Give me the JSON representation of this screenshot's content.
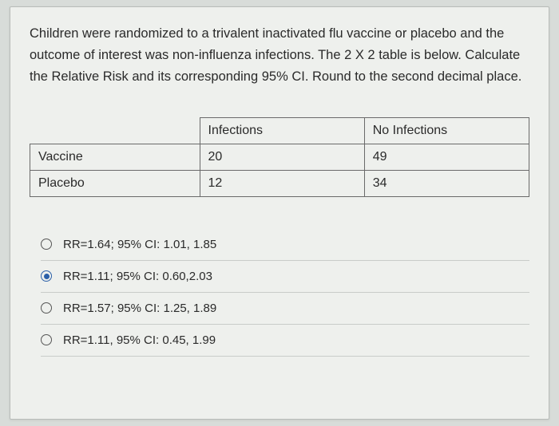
{
  "question": {
    "text": "Children were randomized to a trivalent inactivated flu vaccine or placebo and the outcome of interest was non-influenza infections. The 2 X 2 table is below. Calculate the Relative Risk and its corresponding 95% CI. Round to the second decimal place."
  },
  "table": {
    "columns": [
      "",
      "Infections",
      "No Infections"
    ],
    "rows": [
      [
        "Vaccine",
        "20",
        "49"
      ],
      [
        "Placebo",
        "12",
        "34"
      ]
    ],
    "border_color": "#6a6a6a",
    "cell_background": "#eef0ed",
    "text_color": "#2a2a2a",
    "fontsize": 16
  },
  "options": [
    {
      "label": "RR=1.64; 95% CI: 1.01, 1.85",
      "selected": false
    },
    {
      "label": "RR=1.11; 95% CI: 0.60,2.03",
      "selected": true
    },
    {
      "label": "RR=1.57; 95% CI: 1.25, 1.89",
      "selected": false
    },
    {
      "label": "RR=1.11, 95% CI: 0.45, 1.99",
      "selected": false
    }
  ],
  "colors": {
    "page_background": "#d8dcd9",
    "card_background": "#eef0ed",
    "card_border": "#b8bcb9",
    "text": "#2a2a2a",
    "divider": "#c8ccc9",
    "radio_selected": "#2b5fa8"
  }
}
